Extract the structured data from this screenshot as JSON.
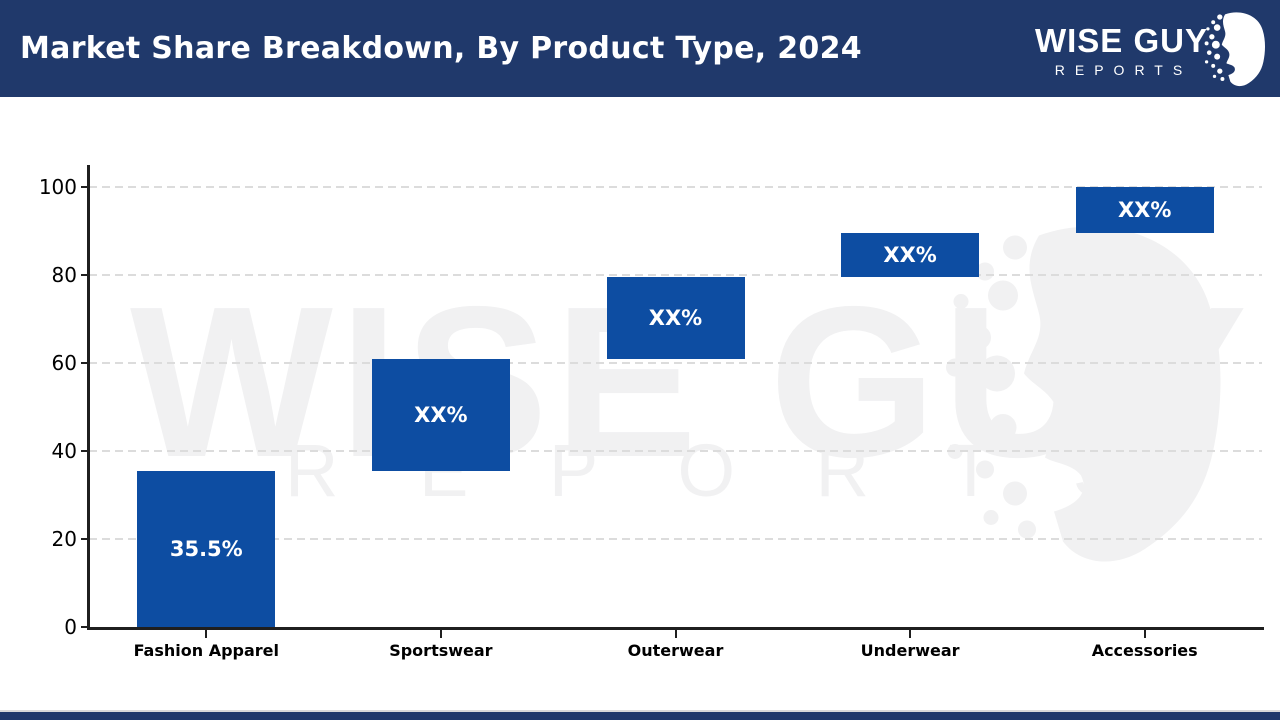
{
  "header": {
    "title": "Market Share Breakdown, By Product Type, 2024",
    "logo": {
      "line1": "WISE GUY",
      "line2": "REPORTS"
    }
  },
  "watermark": {
    "line1": "WISE GUY",
    "line2": "R E P O R T S"
  },
  "colors": {
    "header_navy": "#20396B",
    "bar_blue": "#0D4DA2",
    "bar_label": "#ffffff",
    "gridline": "#dcdcdc",
    "axis": "#1f1f1f",
    "watermark_gray": "#f1f1f2"
  },
  "chart_data": {
    "type": "bar",
    "subtype": "waterfall",
    "title": "Market Share Breakdown, By Product Type, 2024",
    "categories": [
      "Fashion Apparel",
      "Sportswear",
      "Outerwear",
      "Underwear",
      "Accessories"
    ],
    "segments": [
      {
        "category": "Fashion Apparel",
        "start": 0,
        "end": 35.5,
        "label": "35.5%"
      },
      {
        "category": "Sportswear",
        "start": 35.5,
        "end": 61,
        "label": "XX%"
      },
      {
        "category": "Outerwear",
        "start": 61,
        "end": 79.5,
        "label": "XX%"
      },
      {
        "category": "Underwear",
        "start": 79.5,
        "end": 89.5,
        "label": "XX%"
      },
      {
        "category": "Accessories",
        "start": 89.5,
        "end": 100,
        "label": "XX%"
      }
    ],
    "xlabel": "",
    "ylabel": "",
    "y_ticks": [
      0,
      20,
      40,
      60,
      80,
      100
    ],
    "ylim": [
      0,
      105
    ],
    "grid": "horizontal-dashed",
    "legend": "none"
  }
}
